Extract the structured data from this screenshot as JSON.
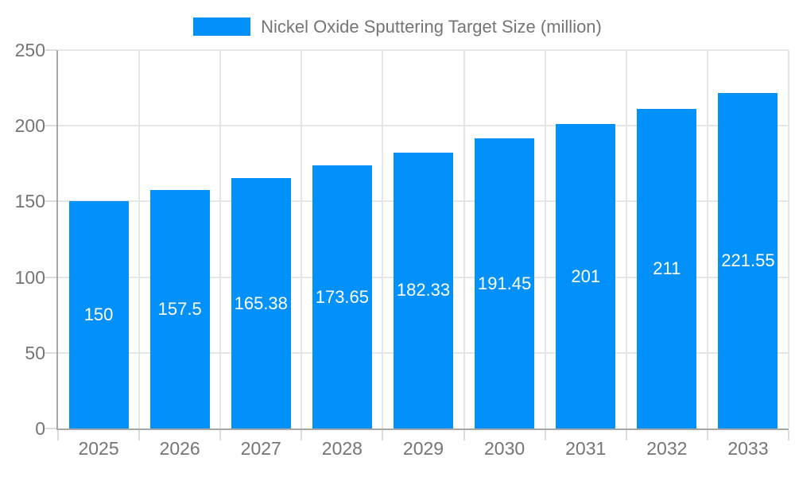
{
  "chart_data": {
    "type": "bar",
    "title": "Nickel Oxide Sputtering Target Size (million)",
    "legend": {
      "label": "Nickel Oxide Sputtering Target Size (million)",
      "position": "top"
    },
    "categories": [
      "2025",
      "2026",
      "2027",
      "2028",
      "2029",
      "2030",
      "2031",
      "2032",
      "2033"
    ],
    "values": [
      150,
      157.5,
      165.38,
      173.65,
      182.33,
      191.45,
      201,
      211,
      221.55
    ],
    "value_labels": [
      "150",
      "157.5",
      "165.38",
      "173.65",
      "182.33",
      "191.45",
      "201",
      "211",
      "221.55"
    ],
    "xlabel": "",
    "ylabel": "",
    "ylim": [
      0,
      250
    ],
    "yticks": [
      0,
      50,
      100,
      150,
      200,
      250
    ],
    "grid": true,
    "value_label_position": "inside-center",
    "colors": {
      "bar": "#0291fa",
      "axis_line": "#a8a8a8",
      "grid_line": "#e6e6e6",
      "tick": "#dcdcdc",
      "axis_text": "#757575",
      "value_text": "#ffffff"
    }
  }
}
